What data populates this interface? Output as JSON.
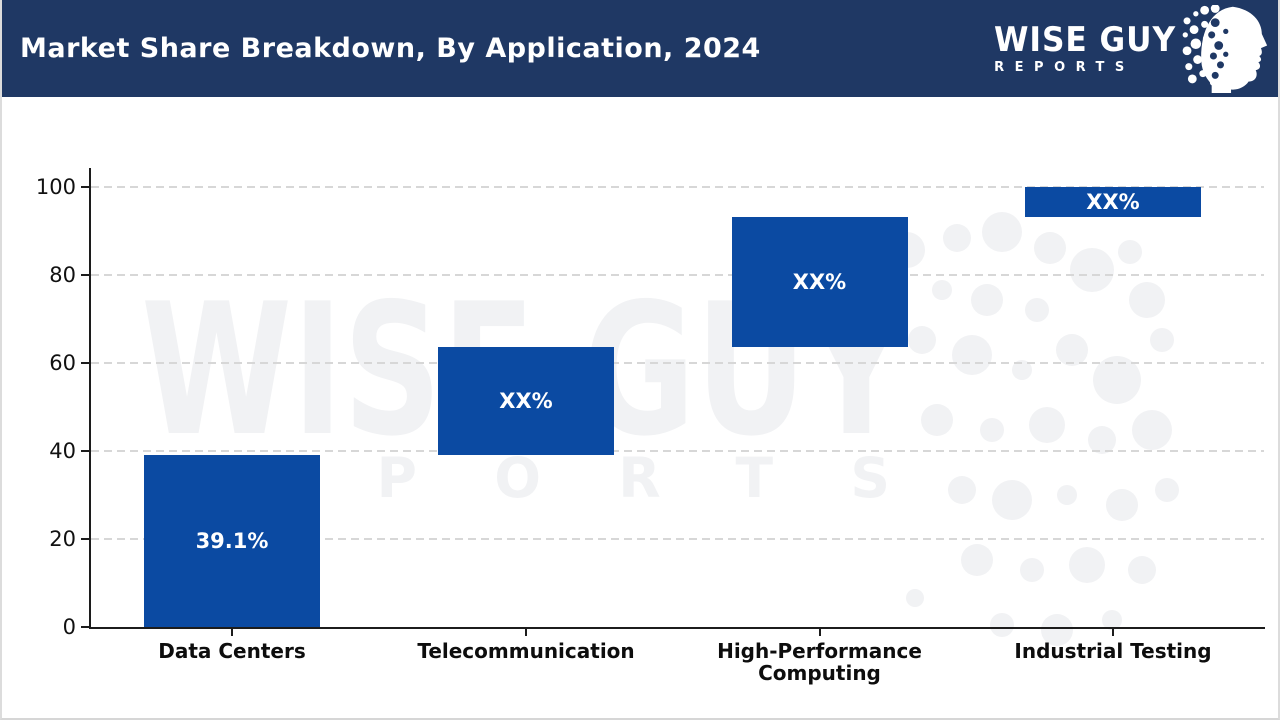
{
  "header": {
    "title": "Market Share Breakdown, By Application, 2024",
    "logo": {
      "line1": "WISE GUY",
      "line2": "REPORTS"
    }
  },
  "watermark": {
    "line1": "WISE GUY",
    "line2": "REPORTS"
  },
  "chart_data": {
    "type": "bar",
    "subtype": "waterfall-segments",
    "title": "Market Share Breakdown, By Application, 2024",
    "categories": [
      "Data Centers",
      "Telecommunication",
      "High-Performance Computing",
      "Industrial Testing"
    ],
    "category_label_lines": [
      [
        "Data Centers"
      ],
      [
        "Telecommunication"
      ],
      [
        "High-Performance",
        "Computing"
      ],
      [
        "Industrial Testing"
      ]
    ],
    "segments": [
      {
        "category": "Data Centers",
        "start": 0,
        "end": 39.1,
        "label": "39.1%"
      },
      {
        "category": "Telecommunication",
        "start": 39.1,
        "end": 63.6,
        "label": "XX%"
      },
      {
        "category": "High-Performance Computing",
        "start": 63.6,
        "end": 93.1,
        "label": "XX%"
      },
      {
        "category": "Industrial Testing",
        "start": 93.1,
        "end": 100,
        "label": "XX%"
      }
    ],
    "yticks": [
      0,
      20,
      40,
      60,
      80,
      100
    ],
    "ylim": [
      0,
      104
    ],
    "xlabel": "",
    "ylabel": "",
    "grid": "horizontal-dashed",
    "legend": "none",
    "bar_color": "#0b4aa2"
  },
  "colors": {
    "header_background": "#1f3864",
    "bar_fill": "#0b4aa2",
    "bar_label_text": "#ffffff",
    "axis": "#1c1c1c",
    "gridline": "#d7d7d7",
    "watermark": "#f1f2f4",
    "page_border": "#dcdcdc",
    "tick_text": "#111111"
  }
}
